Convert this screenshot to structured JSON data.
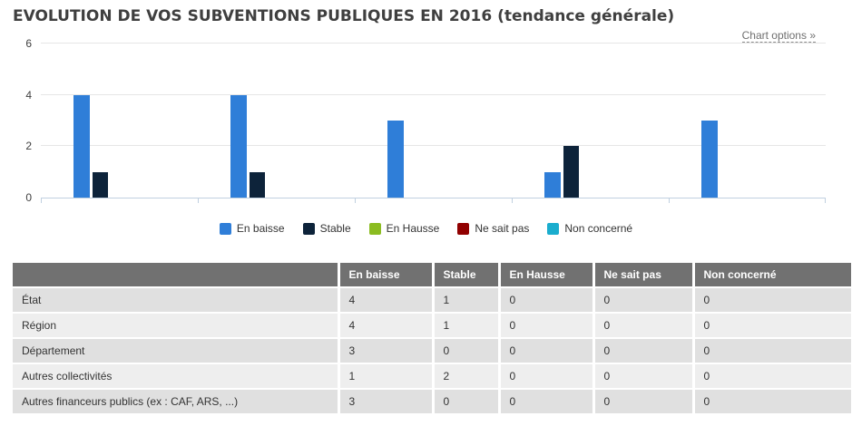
{
  "header": {
    "title": "EVOLUTION DE VOS SUBVENTIONS PUBLIQUES EN 2016 (tendance générale)",
    "chart_options_label": "Chart options »"
  },
  "chart_data": {
    "type": "bar",
    "title": "EVOLUTION DE VOS SUBVENTIONS PUBLIQUES EN 2016 (tendance générale)",
    "categories": [
      "État",
      "Région",
      "Département",
      "Autres collectivités",
      "Autres financeurs publics (ex : CAF, ARS, ...)"
    ],
    "series": [
      {
        "name": "En baisse",
        "color": "#2f7ed8",
        "values": [
          4,
          4,
          3,
          1,
          3
        ]
      },
      {
        "name": "Stable",
        "color": "#0d233a",
        "values": [
          1,
          1,
          0,
          2,
          0
        ]
      },
      {
        "name": "En Hausse",
        "color": "#8bbc21",
        "values": [
          0,
          0,
          0,
          0,
          0
        ]
      },
      {
        "name": "Ne sait pas",
        "color": "#910000",
        "values": [
          0,
          0,
          0,
          0,
          0
        ]
      },
      {
        "name": "Non concerné",
        "color": "#1aadce",
        "values": [
          0,
          0,
          0,
          0,
          0
        ]
      }
    ],
    "xlabel": "",
    "ylabel": "",
    "ylim": [
      0,
      6
    ],
    "yticks": [
      0,
      2,
      4,
      6
    ],
    "grid": true,
    "legend_position": "bottom",
    "x_tick_labels": []
  },
  "table": {
    "columns": [
      "",
      "En baisse",
      "Stable",
      "En Hausse",
      "Ne sait pas",
      "Non concerné"
    ],
    "rows": [
      {
        "label": "État",
        "values": [
          4,
          1,
          0,
          0,
          0
        ]
      },
      {
        "label": "Région",
        "values": [
          4,
          1,
          0,
          0,
          0
        ]
      },
      {
        "label": "Département",
        "values": [
          3,
          0,
          0,
          0,
          0
        ]
      },
      {
        "label": "Autres collectivités",
        "values": [
          1,
          2,
          0,
          0,
          0
        ]
      },
      {
        "label": "Autres financeurs publics (ex : CAF, ARS, ...)",
        "values": [
          3,
          0,
          0,
          0,
          0
        ]
      }
    ]
  },
  "colors": {
    "header_bg": "#717171",
    "row_odd": "#e0e0e0",
    "row_even": "#eeeeee",
    "gridline": "#e6e6e6",
    "axis_line": "#c0d0e0",
    "title_text": "#3f3f3f",
    "link_text": "#6f6f6f"
  }
}
